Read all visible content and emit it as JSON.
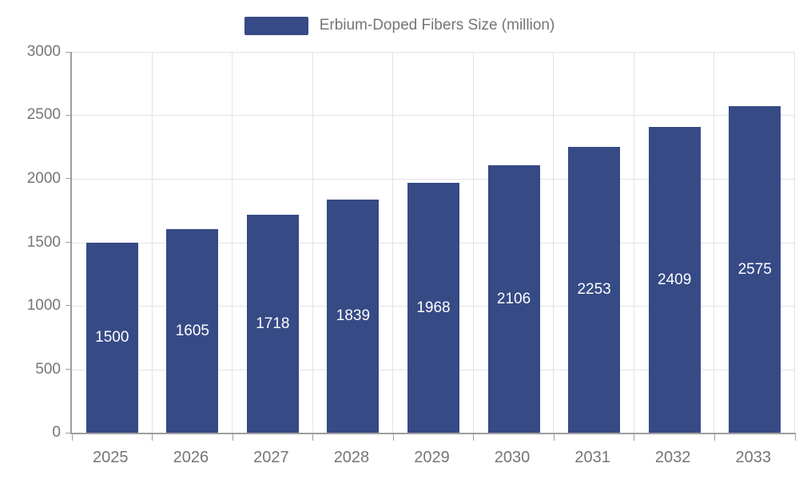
{
  "colors": {
    "bar": "#364a85",
    "axis_line": "#9e9e9e",
    "gridline": "#e3e3e3",
    "axis_text": "#757575",
    "value_label_text": "#ffffff",
    "background": "#ffffff"
  },
  "legend": {
    "label": "Erbium-Doped Fibers Size (million)"
  },
  "chart_data": {
    "type": "bar",
    "title": "",
    "xlabel": "",
    "ylabel": "",
    "categories": [
      "2025",
      "2026",
      "2027",
      "2028",
      "2029",
      "2030",
      "2031",
      "2032",
      "2033"
    ],
    "values": [
      1500,
      1605,
      1718,
      1839,
      1968,
      2106,
      2253,
      2409,
      2575
    ],
    "series_name": "Erbium-Doped Fibers Size (million)",
    "ylim": [
      0,
      3000
    ],
    "y_ticks": [
      0,
      500,
      1000,
      1500,
      2000,
      2500,
      3000
    ],
    "grid": true,
    "legend_position": "top",
    "value_labels_position": "inside-center"
  }
}
